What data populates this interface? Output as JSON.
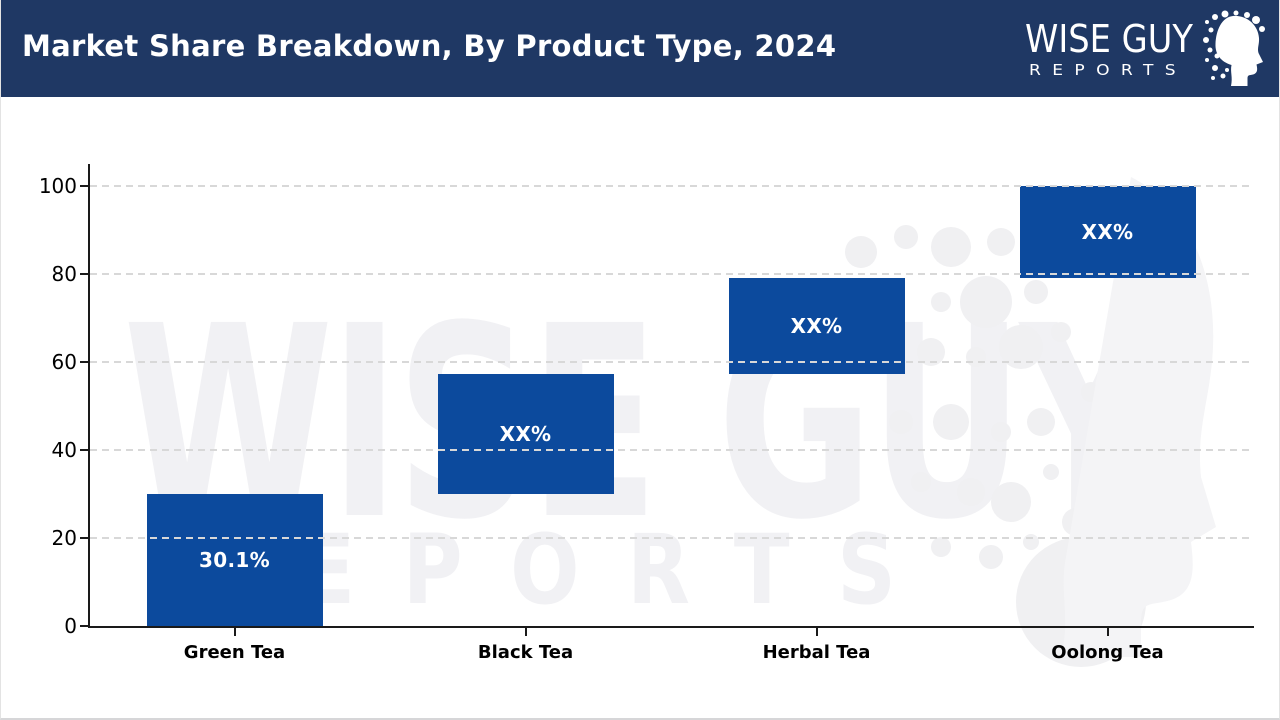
{
  "header": {
    "title": "Market Share Breakdown, By Product Type, 2024",
    "logo_line1": "WISE GUY",
    "logo_line2": "REPORTS",
    "bg_color": "#1f3864"
  },
  "watermark": {
    "line1": "WISE GUY",
    "line2": "REPORTS"
  },
  "chart_data": {
    "type": "bar",
    "subtype": "waterfall-stacked-breakdown",
    "title": "Market Share Breakdown, By Product Type, 2024",
    "categories": [
      "Green Tea",
      "Black Tea",
      "Herbal Tea",
      "Oolong Tea"
    ],
    "bars": [
      {
        "category": "Green Tea",
        "start": 0,
        "end": 30.1,
        "label": "30.1%"
      },
      {
        "category": "Black Tea",
        "start": 30.1,
        "end": 57.3,
        "label": "XX%"
      },
      {
        "category": "Herbal Tea",
        "start": 57.3,
        "end": 79.1,
        "label": "XX%"
      },
      {
        "category": "Oolong Tea",
        "start": 79.1,
        "end": 100,
        "label": "XX%"
      }
    ],
    "ylim": [
      0,
      100
    ],
    "yticks": [
      0,
      20,
      40,
      60,
      80,
      100
    ],
    "xlabel": "",
    "ylabel": "",
    "grid": true,
    "gridline_style": "dashed",
    "legend": "none",
    "bar_color": "#0c4a9d",
    "label_color": "#ffffff",
    "axis_color": "#1a1a1a",
    "grid_color": "#d8d8d8"
  }
}
